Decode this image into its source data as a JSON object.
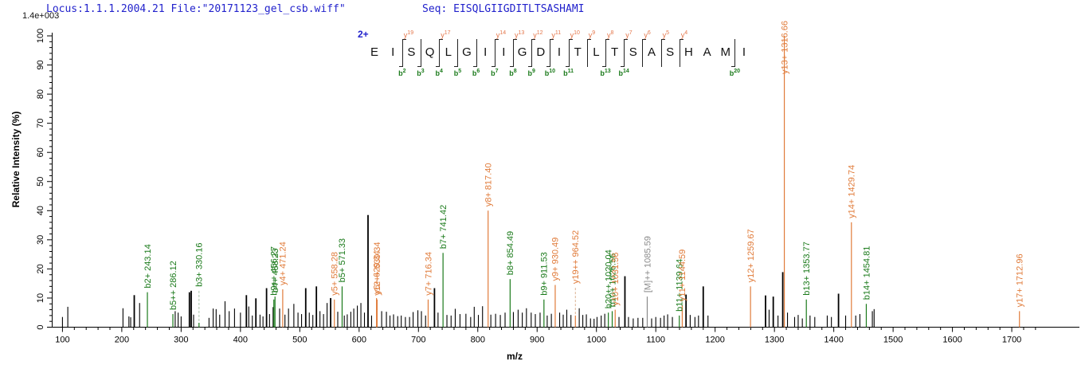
{
  "header": {
    "locus_file": "Locus:1.1.1.2004.21 File:\"20171123_gel_csb.wiff\"",
    "seq_label": "Seq: EISQLGIIGDITLTSASHAMI",
    "max_intensity": "1.4e+003",
    "charge_state": "2+"
  },
  "colors": {
    "header_text": "#2222cc",
    "axis": "#000000",
    "peak": "#000000",
    "b_ion": "#1a7a1a",
    "y_ion": "#e07b3a",
    "ladder_y": "#e4764a",
    "precursor": "#8a8a8a",
    "b_dash": "#a9c4a9",
    "y_dash": "#dcb293"
  },
  "ladder": {
    "residues": [
      "E",
      "I",
      "S",
      "Q",
      "L",
      "G",
      "I",
      "I",
      "G",
      "D",
      "I",
      "T",
      "L",
      "T",
      "S",
      "A",
      "S",
      "H",
      "A",
      "M",
      "I"
    ],
    "boundaries": [
      {
        "after": 2,
        "b": "b2",
        "y": "y19"
      },
      {
        "after": 3,
        "b": "b3",
        "y": null
      },
      {
        "after": 4,
        "b": "b4",
        "y": "y17"
      },
      {
        "after": 5,
        "b": "b5",
        "y": null
      },
      {
        "after": 6,
        "b": "b6",
        "y": null
      },
      {
        "after": 7,
        "b": "b7",
        "y": "y14"
      },
      {
        "after": 8,
        "b": "b8",
        "y": "y13"
      },
      {
        "after": 9,
        "b": "b9",
        "y": "y12"
      },
      {
        "after": 10,
        "b": "b10",
        "y": "y11"
      },
      {
        "after": 11,
        "b": "b11",
        "y": "y10"
      },
      {
        "after": 12,
        "b": null,
        "y": "y9"
      },
      {
        "after": 13,
        "b": "b13",
        "y": "y8"
      },
      {
        "after": 14,
        "b": "b14",
        "y": "y7"
      },
      {
        "after": 15,
        "b": null,
        "y": "y6"
      },
      {
        "after": 16,
        "b": null,
        "y": "y5"
      },
      {
        "after": 17,
        "b": null,
        "y": "y4"
      },
      {
        "after": 20,
        "b": "b20",
        "y": null
      }
    ]
  },
  "chart_data": {
    "type": "bar",
    "subtype": "mass-spectrum",
    "title": "",
    "xlabel": "m/z",
    "ylabel": "Relative  Intensity (%)",
    "xlim": [
      82,
      1810
    ],
    "ylim": [
      0,
      100
    ],
    "x_ticks": [
      100,
      200,
      300,
      400,
      500,
      600,
      700,
      800,
      900,
      1000,
      1100,
      1200,
      1300,
      1400,
      1500,
      1600,
      1700
    ],
    "x_minor_step": 20,
    "y_ticks": [
      0,
      10,
      20,
      30,
      40,
      50,
      60,
      70,
      80,
      90,
      100
    ],
    "y_minor_step": 2,
    "max_intensity_label": "1.4e+003",
    "legend": "none",
    "grid": false,
    "series": {
      "b_ions": [
        {
          "label": "b2+ 243.14",
          "mz": 243.14,
          "h": 12
        },
        {
          "label": "b5++ 286.12",
          "mz": 286.12,
          "h": 4.5
        },
        {
          "label": "b3+ 330.16",
          "mz": 330.16,
          "h": 1.5,
          "dashed": true,
          "label_h": 12.5
        },
        {
          "label": "b9++ 456.27",
          "mz": 456.27,
          "h": 9.5
        },
        {
          "label": "b4+ 458.23",
          "mz": 458.23,
          "h": 10.5
        },
        {
          "label": "b5+ 571.33",
          "mz": 571.33,
          "h": 14
        },
        {
          "label": "b7+ 741.42",
          "mz": 741.42,
          "h": 25.5
        },
        {
          "label": "b8+ 854.49",
          "mz": 854.49,
          "h": 16.5
        },
        {
          "label": "b9+ 911.53",
          "mz": 911.53,
          "h": 9.5
        },
        {
          "label": "b20++ 1020.04",
          "mz": 1020.04,
          "h": 5
        },
        {
          "label": "b10+ 1026.56",
          "mz": 1026.56,
          "h": 5.5
        },
        {
          "label": "b11+ 1139.64",
          "mz": 1139.64,
          "h": 4
        },
        {
          "label": "b13+ 1353.77",
          "mz": 1353.77,
          "h": 9.5
        },
        {
          "label": "b14+ 1454.81",
          "mz": 1454.81,
          "h": 8
        }
      ],
      "y_ions": [
        {
          "label": "y4+ 471.24",
          "mz": 471.24,
          "h": 13
        },
        {
          "label": "y5+ 558.28",
          "mz": 558.28,
          "h": 9.5
        },
        {
          "label": "y12++ 630.34",
          "mz": 630.34,
          "h": 9.5
        },
        {
          "label": "y6+ 629.34",
          "mz": 629.34,
          "h": 10
        },
        {
          "label": "y7+ 716.34",
          "mz": 716.34,
          "h": 9.5
        },
        {
          "label": "y8+ 817.40",
          "mz": 817.4,
          "h": 40
        },
        {
          "label": "y9+ 930.49",
          "mz": 930.49,
          "h": 14.5
        },
        {
          "label": "y19++ 964.52",
          "mz": 964.52,
          "h": 4,
          "dashed": true,
          "label_h": 13.5
        },
        {
          "label": "y10+ 1031.56",
          "mz": 1031.56,
          "h": 6
        },
        {
          "label": "y11+ 1144.59",
          "mz": 1144.59,
          "h": 7.5
        },
        {
          "label": "y12+ 1259.67",
          "mz": 1259.67,
          "h": 14
        },
        {
          "label": "y13+ 1316.66",
          "mz": 1316.66,
          "h": 100
        },
        {
          "label": "y14+ 1429.74",
          "mz": 1429.74,
          "h": 36
        },
        {
          "label": "y17+ 1712.96",
          "mz": 1712.96,
          "h": 5.5
        }
      ],
      "precursor": [
        {
          "label": "[M]++ 1085.59",
          "mz": 1085.59,
          "h": 10.5
        }
      ],
      "unlabeled_peaks": [
        [
          100,
          3.5
        ],
        [
          109,
          7
        ],
        [
          202,
          6.5
        ],
        [
          212,
          3.7
        ],
        [
          215,
          3.4
        ],
        [
          221,
          11
        ],
        [
          230,
          8.3
        ],
        [
          290,
          5.5
        ],
        [
          295,
          5
        ],
        [
          300,
          3.7
        ],
        [
          314,
          12
        ],
        [
          317,
          12.5
        ],
        [
          321,
          4.3
        ],
        [
          347,
          3.2
        ],
        [
          354,
          6.4
        ],
        [
          359,
          6.2
        ],
        [
          365,
          4.3
        ],
        [
          374,
          8.9
        ],
        [
          381,
          5.5
        ],
        [
          390,
          6.4
        ],
        [
          400,
          5
        ],
        [
          410,
          11
        ],
        [
          414,
          7.1
        ],
        [
          420,
          4
        ],
        [
          426,
          9.9
        ],
        [
          433,
          4.3
        ],
        [
          438,
          3.7
        ],
        [
          444,
          13.4
        ],
        [
          449,
          4.5
        ],
        [
          455,
          6.9
        ],
        [
          466,
          6.4
        ],
        [
          475,
          4.3
        ],
        [
          481,
          6.4
        ],
        [
          490,
          8
        ],
        [
          497,
          5
        ],
        [
          503,
          4.5
        ],
        [
          510,
          13.4
        ],
        [
          516,
          5
        ],
        [
          522,
          4.2
        ],
        [
          528,
          14
        ],
        [
          534,
          5.5
        ],
        [
          540,
          4.5
        ],
        [
          546,
          8.3
        ],
        [
          552,
          10
        ],
        [
          564,
          5.3
        ],
        [
          575,
          4
        ],
        [
          580,
          4.4
        ],
        [
          586,
          5.3
        ],
        [
          591,
          6.4
        ],
        [
          597,
          7.4
        ],
        [
          603,
          8.3
        ],
        [
          609,
          5
        ],
        [
          615,
          38.5
        ],
        [
          621,
          4
        ],
        [
          638,
          5.5
        ],
        [
          646,
          5.3
        ],
        [
          652,
          4
        ],
        [
          658,
          4.4
        ],
        [
          665,
          3.8
        ],
        [
          671,
          4
        ],
        [
          678,
          3.5
        ],
        [
          685,
          3.5
        ],
        [
          691,
          5.2
        ],
        [
          699,
          5.8
        ],
        [
          705,
          5.5
        ],
        [
          712,
          4
        ],
        [
          727,
          13.4
        ],
        [
          733,
          5
        ],
        [
          748,
          4.2
        ],
        [
          755,
          4
        ],
        [
          762,
          6.3
        ],
        [
          770,
          4.5
        ],
        [
          780,
          4.6
        ],
        [
          788,
          3.5
        ],
        [
          794,
          7
        ],
        [
          801,
          4.2
        ],
        [
          808,
          7.2
        ],
        [
          822,
          4.3
        ],
        [
          830,
          4.6
        ],
        [
          838,
          4.2
        ],
        [
          846,
          5
        ],
        [
          860,
          5.2
        ],
        [
          868,
          6
        ],
        [
          875,
          5
        ],
        [
          882,
          6.5
        ],
        [
          890,
          5
        ],
        [
          897,
          4.5
        ],
        [
          905,
          5
        ],
        [
          917,
          4
        ],
        [
          924,
          4.6
        ],
        [
          938,
          5
        ],
        [
          944,
          4.3
        ],
        [
          950,
          6
        ],
        [
          957,
          4.2
        ],
        [
          971,
          6.5
        ],
        [
          977,
          4.2
        ],
        [
          983,
          4.4
        ],
        [
          990,
          3
        ],
        [
          996,
          2.9
        ],
        [
          1001,
          3.5
        ],
        [
          1008,
          4
        ],
        [
          1014,
          4.6
        ],
        [
          1038,
          3.5
        ],
        [
          1048,
          17.5
        ],
        [
          1054,
          3.5
        ],
        [
          1062,
          3
        ],
        [
          1070,
          3.2
        ],
        [
          1078,
          3.2
        ],
        [
          1093,
          3
        ],
        [
          1100,
          3.5
        ],
        [
          1108,
          3.2
        ],
        [
          1114,
          4
        ],
        [
          1120,
          4.4
        ],
        [
          1128,
          3.5
        ],
        [
          1151,
          11.2
        ],
        [
          1158,
          4.2
        ],
        [
          1166,
          3.5
        ],
        [
          1172,
          4
        ],
        [
          1180,
          14
        ],
        [
          1188,
          4
        ],
        [
          1285,
          10.9
        ],
        [
          1291,
          6
        ],
        [
          1298,
          10.5
        ],
        [
          1306,
          4
        ],
        [
          1314,
          18.9
        ],
        [
          1322,
          5
        ],
        [
          1334,
          3.5
        ],
        [
          1340,
          4.2
        ],
        [
          1347,
          3
        ],
        [
          1360,
          4
        ],
        [
          1368,
          3.5
        ],
        [
          1389,
          4
        ],
        [
          1396,
          3.5
        ],
        [
          1408,
          11.5
        ],
        [
          1420,
          4
        ],
        [
          1437,
          4
        ],
        [
          1444,
          4.5
        ],
        [
          1465,
          5.5
        ],
        [
          1468,
          6.2
        ]
      ]
    }
  }
}
